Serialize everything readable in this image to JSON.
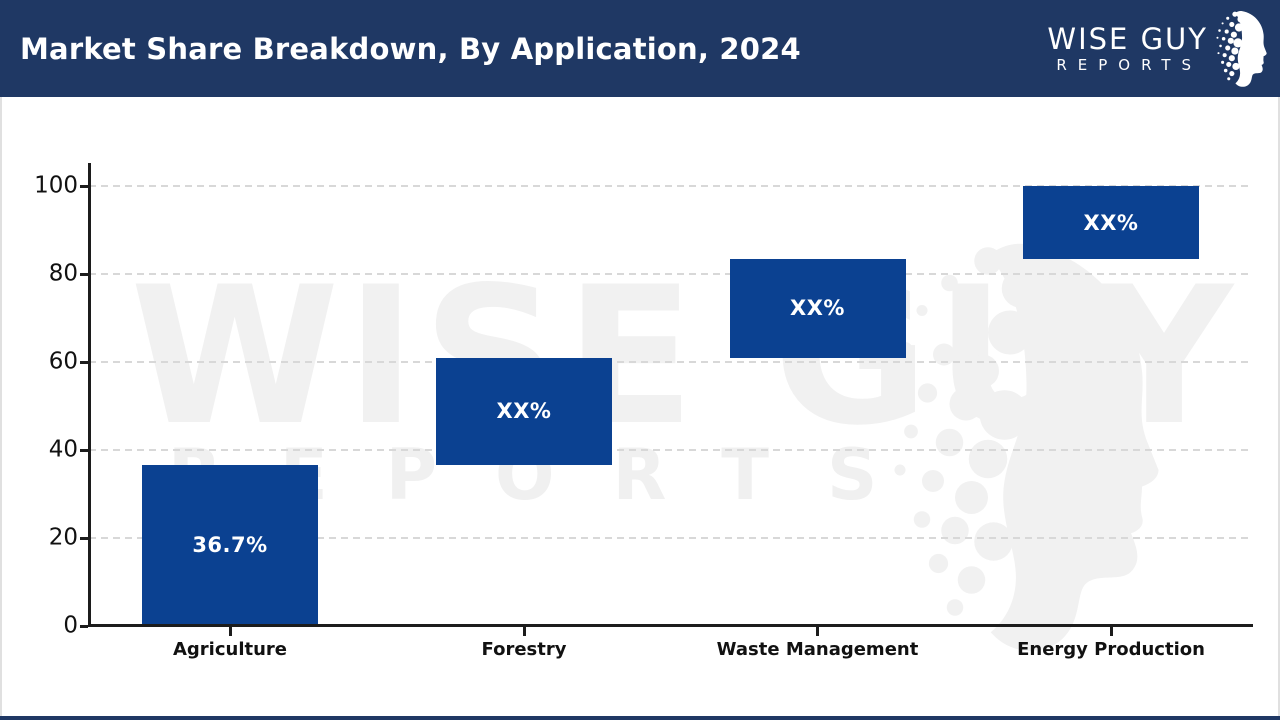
{
  "header": {
    "title": "Market Share Breakdown, By Application, 2024",
    "logo": {
      "wordmark": "WISE GUY",
      "subtext": "REPORTS"
    }
  },
  "watermark": {
    "line1": "WISE GUY",
    "line2": "REPORTS"
  },
  "chart_data": {
    "type": "bar",
    "subtype": "waterfall",
    "title": "Market Share Breakdown, By Application, 2024",
    "categories": [
      "Agriculture",
      "Forestry",
      "Waste Management",
      "Energy Production"
    ],
    "segments": [
      {
        "category": "Agriculture",
        "start": 0,
        "end": 36.7,
        "label": "36.7%"
      },
      {
        "category": "Forestry",
        "start": 36.7,
        "end": 61,
        "label": "XX%"
      },
      {
        "category": "Waste Management",
        "start": 61,
        "end": 83.4,
        "label": "XX%"
      },
      {
        "category": "Energy Production",
        "start": 83.4,
        "end": 100,
        "label": "XX%"
      }
    ],
    "yticks": [
      0,
      20,
      40,
      60,
      80,
      100
    ],
    "ylim": [
      0,
      105
    ],
    "xlabel": "",
    "ylabel": "",
    "grid": "horizontal-dashed",
    "legend": "none",
    "colors": {
      "bar": "#0b4191",
      "bar_label": "#ffffff",
      "grid": "#d8d8d8",
      "axis": "#1c1c1c",
      "header_bg": "#1f3864",
      "background": "#ffffff",
      "watermark": "#f1f1f1"
    }
  }
}
